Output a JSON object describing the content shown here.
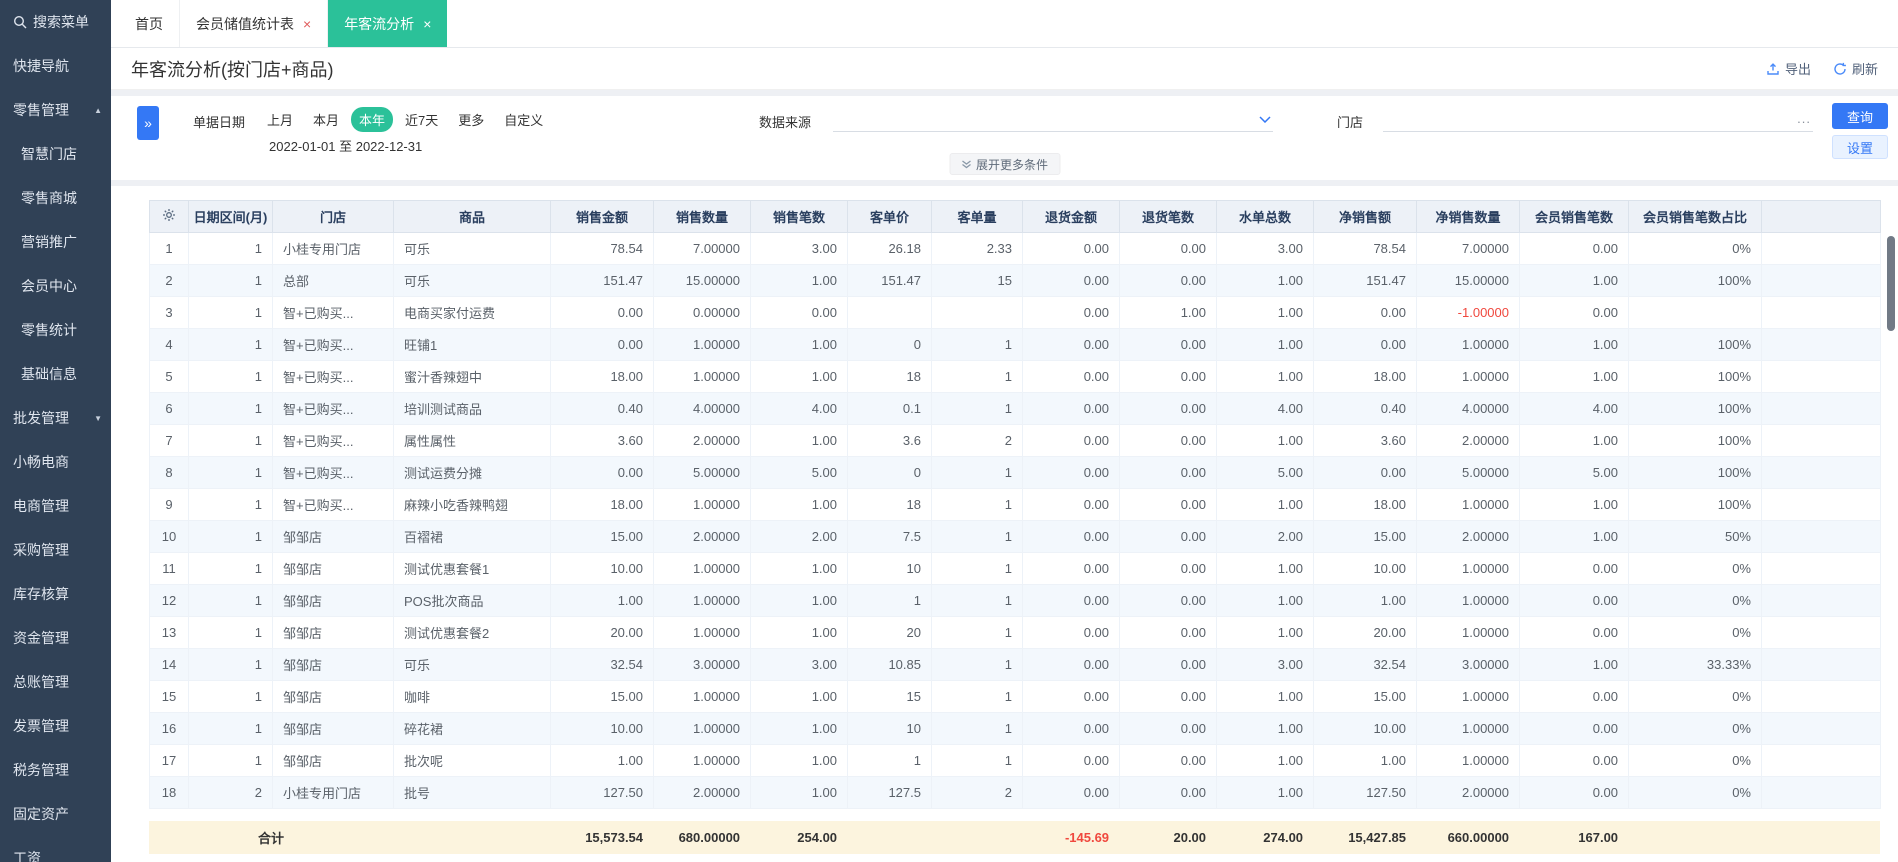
{
  "colors": {
    "accent_green": "#2bc199",
    "accent_blue": "#3478f5",
    "negative_red": "#f0483e",
    "sidebar_bg": "#304156",
    "total_row_bg": "#fcf4de"
  },
  "icons": {
    "close_glyph": "×",
    "expander_glyph": "»"
  },
  "sidebar": {
    "items": [
      {
        "label": "搜索菜单",
        "icon": "search"
      },
      {
        "label": "快捷导航"
      },
      {
        "label": "零售管理",
        "arrow": "up"
      },
      {
        "label": "智慧门店",
        "type": "sub"
      },
      {
        "label": "零售商城",
        "type": "sub"
      },
      {
        "label": "营销推广",
        "type": "sub"
      },
      {
        "label": "会员中心",
        "type": "sub"
      },
      {
        "label": "零售统计",
        "type": "sub"
      },
      {
        "label": "基础信息",
        "type": "sub"
      },
      {
        "label": "批发管理",
        "arrow": "down"
      },
      {
        "label": "小畅电商"
      },
      {
        "label": "电商管理"
      },
      {
        "label": "采购管理"
      },
      {
        "label": "库存核算"
      },
      {
        "label": "资金管理"
      },
      {
        "label": "总账管理"
      },
      {
        "label": "发票管理"
      },
      {
        "label": "税务管理"
      },
      {
        "label": "固定资产"
      },
      {
        "label": "工资"
      }
    ]
  },
  "tabs": [
    {
      "label": "首页",
      "closable": false,
      "active": false
    },
    {
      "label": "会员储值统计表",
      "closable": true,
      "active": false
    },
    {
      "label": "年客流分析",
      "closable": true,
      "active": true
    }
  ],
  "page": {
    "title": "年客流分析(按门店+商品)",
    "export_label": "导出",
    "refresh_label": "刷新"
  },
  "filters": {
    "date_label": "单据日期",
    "date_options": [
      "上月",
      "本月",
      "本年",
      "近7天",
      "更多",
      "自定义"
    ],
    "date_selected": "本年",
    "date_range": "2022-01-01 至 2022-12-31",
    "source_label": "数据来源",
    "store_label": "门店",
    "store_more": "...",
    "query_label": "查询",
    "settings_label": "设置",
    "expand_label": "展开更多条件"
  },
  "table": {
    "columns": [
      "",
      "日期区间(月)",
      "门店",
      "商品",
      "销售金额",
      "销售数量",
      "销售笔数",
      "客单价",
      "客单量",
      "退货金额",
      "退货笔数",
      "水单总数",
      "净销售额",
      "净销售数量",
      "会员销售笔数",
      "会员销售笔数占比"
    ],
    "rows": [
      [
        "1",
        "1",
        "小桂专用门店",
        "可乐",
        "78.54",
        "7.00000",
        "3.00",
        "26.18",
        "2.33",
        "0.00",
        "0.00",
        "3.00",
        "78.54",
        "7.00000",
        "0.00",
        "0%"
      ],
      [
        "2",
        "1",
        "总部",
        "可乐",
        "151.47",
        "15.00000",
        "1.00",
        "151.47",
        "15",
        "0.00",
        "0.00",
        "1.00",
        "151.47",
        "15.00000",
        "1.00",
        "100%"
      ],
      [
        "3",
        "1",
        "智+已购买...",
        "电商买家付运费",
        "0.00",
        "0.00000",
        "0.00",
        "",
        "",
        "0.00",
        "1.00",
        "1.00",
        "0.00",
        "-1.00000",
        "0.00",
        ""
      ],
      [
        "4",
        "1",
        "智+已购买...",
        "旺铺1",
        "0.00",
        "1.00000",
        "1.00",
        "0",
        "1",
        "0.00",
        "0.00",
        "1.00",
        "0.00",
        "1.00000",
        "1.00",
        "100%"
      ],
      [
        "5",
        "1",
        "智+已购买...",
        "蜜汁香辣翅中",
        "18.00",
        "1.00000",
        "1.00",
        "18",
        "1",
        "0.00",
        "0.00",
        "1.00",
        "18.00",
        "1.00000",
        "1.00",
        "100%"
      ],
      [
        "6",
        "1",
        "智+已购买...",
        "培训测试商品",
        "0.40",
        "4.00000",
        "4.00",
        "0.1",
        "1",
        "0.00",
        "0.00",
        "4.00",
        "0.40",
        "4.00000",
        "4.00",
        "100%"
      ],
      [
        "7",
        "1",
        "智+已购买...",
        "属性属性",
        "3.60",
        "2.00000",
        "1.00",
        "3.6",
        "2",
        "0.00",
        "0.00",
        "1.00",
        "3.60",
        "2.00000",
        "1.00",
        "100%"
      ],
      [
        "8",
        "1",
        "智+已购买...",
        "测试运费分摊",
        "0.00",
        "5.00000",
        "5.00",
        "0",
        "1",
        "0.00",
        "0.00",
        "5.00",
        "0.00",
        "5.00000",
        "5.00",
        "100%"
      ],
      [
        "9",
        "1",
        "智+已购买...",
        "麻辣小吃香辣鸭翅",
        "18.00",
        "1.00000",
        "1.00",
        "18",
        "1",
        "0.00",
        "0.00",
        "1.00",
        "18.00",
        "1.00000",
        "1.00",
        "100%"
      ],
      [
        "10",
        "1",
        "邹邹店",
        "百褶裙",
        "15.00",
        "2.00000",
        "2.00",
        "7.5",
        "1",
        "0.00",
        "0.00",
        "2.00",
        "15.00",
        "2.00000",
        "1.00",
        "50%"
      ],
      [
        "11",
        "1",
        "邹邹店",
        "测试优惠套餐1",
        "10.00",
        "1.00000",
        "1.00",
        "10",
        "1",
        "0.00",
        "0.00",
        "1.00",
        "10.00",
        "1.00000",
        "0.00",
        "0%"
      ],
      [
        "12",
        "1",
        "邹邹店",
        "POS批次商品",
        "1.00",
        "1.00000",
        "1.00",
        "1",
        "1",
        "0.00",
        "0.00",
        "1.00",
        "1.00",
        "1.00000",
        "0.00",
        "0%"
      ],
      [
        "13",
        "1",
        "邹邹店",
        "测试优惠套餐2",
        "20.00",
        "1.00000",
        "1.00",
        "20",
        "1",
        "0.00",
        "0.00",
        "1.00",
        "20.00",
        "1.00000",
        "0.00",
        "0%"
      ],
      [
        "14",
        "1",
        "邹邹店",
        "可乐",
        "32.54",
        "3.00000",
        "3.00",
        "10.85",
        "1",
        "0.00",
        "0.00",
        "3.00",
        "32.54",
        "3.00000",
        "1.00",
        "33.33%"
      ],
      [
        "15",
        "1",
        "邹邹店",
        "咖啡",
        "15.00",
        "1.00000",
        "1.00",
        "15",
        "1",
        "0.00",
        "0.00",
        "1.00",
        "15.00",
        "1.00000",
        "0.00",
        "0%"
      ],
      [
        "16",
        "1",
        "邹邹店",
        "碎花裙",
        "10.00",
        "1.00000",
        "1.00",
        "10",
        "1",
        "0.00",
        "0.00",
        "1.00",
        "10.00",
        "1.00000",
        "0.00",
        "0%"
      ],
      [
        "17",
        "1",
        "邹邹店",
        "批次呢",
        "1.00",
        "1.00000",
        "1.00",
        "1",
        "1",
        "0.00",
        "0.00",
        "1.00",
        "1.00",
        "1.00000",
        "0.00",
        "0%"
      ],
      [
        "18",
        "2",
        "小桂专用门店",
        "批号",
        "127.50",
        "2.00000",
        "1.00",
        "127.5",
        "2",
        "0.00",
        "0.00",
        "1.00",
        "127.50",
        "2.00000",
        "0.00",
        "0%"
      ]
    ],
    "total": {
      "label": "合计",
      "values": [
        "15,573.54",
        "680.00000",
        "254.00",
        "",
        "",
        "-145.69",
        "20.00",
        "274.00",
        "15,427.85",
        "660.00000",
        "167.00",
        ""
      ]
    }
  }
}
